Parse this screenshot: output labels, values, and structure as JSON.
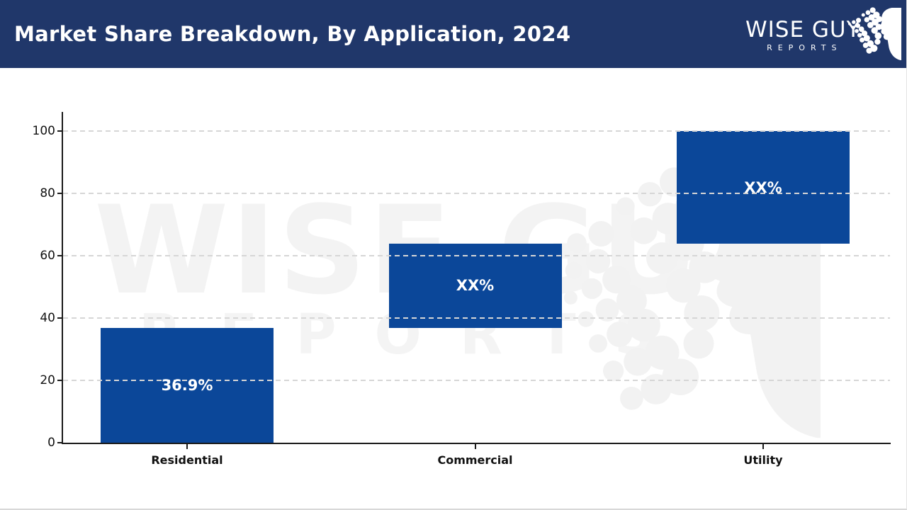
{
  "header": {
    "title": "Market Share Breakdown, By Application, 2024",
    "logo": {
      "line1": "WISE GUY",
      "line2": "REPORTS"
    }
  },
  "watermark": {
    "line1": "WISE GUY",
    "line2": "REPORTS"
  },
  "colors": {
    "header_bg": "#20376A",
    "bar": "#0B4799",
    "grid": "#d6d6d6",
    "bar_label": "#ffffff",
    "watermark": "#f3f3f3"
  },
  "chart_data": {
    "type": "bar",
    "subtype": "waterfall",
    "title": "Market Share Breakdown, By Application, 2024",
    "categories": [
      "Residential",
      "Commercial",
      "Utility"
    ],
    "series": [
      {
        "name": "Market Share %",
        "segments": [
          {
            "category": "Residential",
            "start": 0,
            "end": 36.9,
            "label": "36.9%"
          },
          {
            "category": "Commercial",
            "start": 36.9,
            "end": 64,
            "label": "XX%"
          },
          {
            "category": "Utility",
            "start": 64,
            "end": 100,
            "label": "XX%"
          }
        ]
      }
    ],
    "ylim": [
      0,
      105.8
    ],
    "yticks": [
      0,
      20,
      40,
      60,
      80,
      100
    ],
    "xlabel": "",
    "ylabel": "",
    "grid": "dashed-horizontal",
    "legend": "none",
    "bar_value_labels_inside": true
  }
}
